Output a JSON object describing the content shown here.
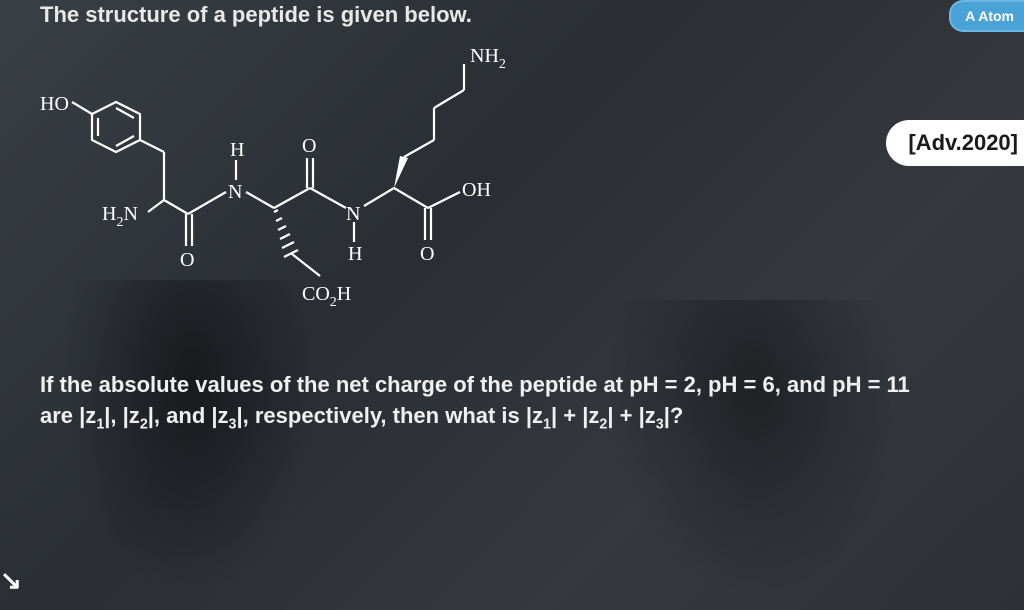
{
  "title_text": "The structure of a peptide is given below.",
  "badge_top_text": "A Atom",
  "badge_adv_text": "[Adv.2020]",
  "question_html": "If the absolute values of the net charge of the peptide at pH = 2, pH = 6, and pH = 11 are |z<sub>1</sub>|, |z<sub>2</sub>|, and |z<sub>3</sub>|, respectively, then what is |z<sub>1</sub>| + |z<sub>2</sub>| + |z<sub>3</sub>|?",
  "arrow_text": "↘",
  "structure": {
    "type": "chemical-structure",
    "labels": {
      "HO": "HO",
      "NH2_top": "NH",
      "NH2_top_sub": "2",
      "H2N": "H",
      "H2N_sub": "2",
      "H2N_tail": "N",
      "H_upper1": "H",
      "H_lower1": "H",
      "N1": "N",
      "N2": "N",
      "O1": "O",
      "O2": "O",
      "O3": "O",
      "OH": "OH",
      "CO2H": "CO",
      "CO2H_sub": "2",
      "CO2H_tail": "H"
    },
    "colors": {
      "bond": "#ffffff",
      "text": "#ffffff",
      "background": "transparent"
    },
    "line_width": 2.2
  }
}
